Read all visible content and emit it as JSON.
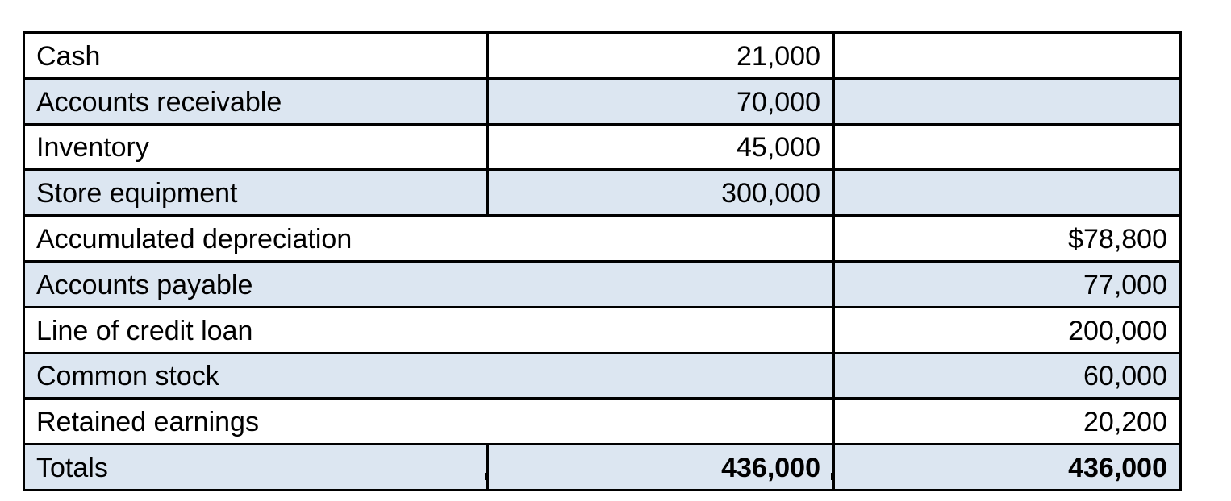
{
  "canvas": {
    "background": "#ffffff"
  },
  "table": {
    "band_color": "#dce6f1",
    "border_color": "#000000",
    "rows": [
      {
        "label": "Cash",
        "debit": "21,000",
        "credit": ""
      },
      {
        "label": "Accounts receivable",
        "debit": "70,000",
        "credit": ""
      },
      {
        "label": "Inventory",
        "debit": "45,000",
        "credit": ""
      },
      {
        "label": "Store equipment",
        "debit": "300,000",
        "credit": ""
      },
      {
        "label": "Accumulated depreciation",
        "debit": "",
        "credit": "$78,800"
      },
      {
        "label": "Accounts payable",
        "debit": "",
        "credit": "77,000"
      },
      {
        "label": "Line of credit loan",
        "debit": "",
        "credit": "200,000"
      },
      {
        "label": "Common stock",
        "debit": "",
        "credit": "60,000"
      },
      {
        "label": "Retained earnings",
        "debit": "",
        "credit": "20,200"
      },
      {
        "label": "Totals",
        "debit": "436,000",
        "credit": "436,000"
      }
    ]
  }
}
